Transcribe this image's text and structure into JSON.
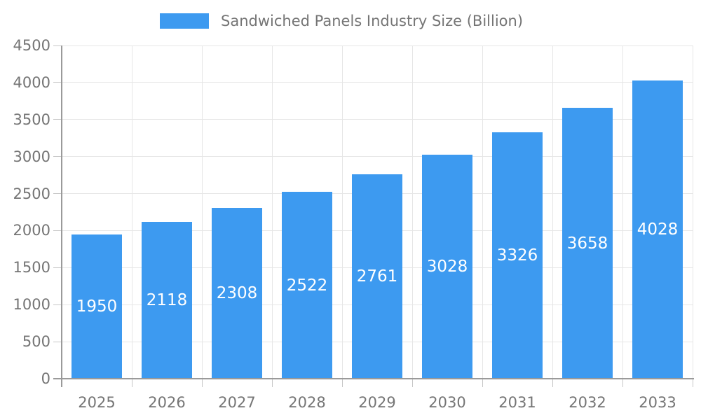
{
  "legend": {
    "label": "Sandwiched Panels Industry Size (Billion)"
  },
  "chart_data": {
    "type": "bar",
    "title": "",
    "series_name": "Sandwiched Panels Industry Size (Billion)",
    "categories": [
      "2025",
      "2026",
      "2027",
      "2028",
      "2029",
      "2030",
      "2031",
      "2032",
      "2033"
    ],
    "values": [
      1950,
      2118,
      2308,
      2522,
      2761,
      3028,
      3326,
      3658,
      4028
    ],
    "xlabel": "",
    "ylabel": "",
    "ylim": [
      0,
      4500
    ],
    "yticks": [
      0,
      500,
      1000,
      1500,
      2000,
      2500,
      3000,
      3500,
      4000,
      4500
    ],
    "grid": true,
    "legend_position": "top",
    "bar_color": "#3D9AF0",
    "value_label_color": "#FFFFFF",
    "axis_text_color": "#757575",
    "gridline_color": "#E6E6E6",
    "axis_line_color": "#9A9A9A",
    "tick_color": "#C6C6C6",
    "background_color": "#FFFFFF"
  }
}
